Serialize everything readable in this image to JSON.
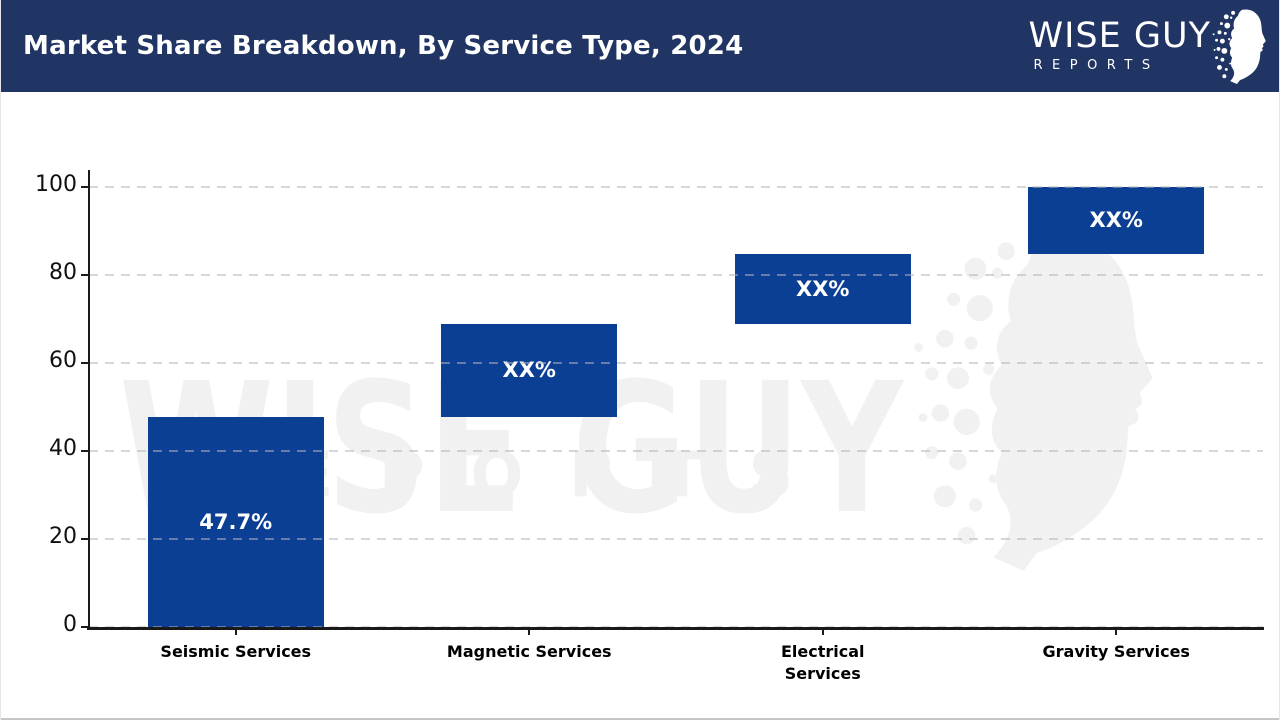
{
  "header": {
    "title": "Market Share Breakdown, By Service Type, 2024",
    "logo": {
      "line1": "WISE GUY",
      "line2": "REPORTS"
    }
  },
  "watermark": {
    "line1": "WISE GUY",
    "line2": "REPORTS"
  },
  "colors": {
    "header_bg": "#213564",
    "bar": "#0a3f94",
    "grid": "#b4b4b4",
    "axis": "#1a1a1a",
    "watermark": "#f1f1f1",
    "value_text": "#ffffff"
  },
  "chart_data": {
    "type": "bar",
    "variant": "waterfall",
    "title": "Market Share Breakdown, By Service Type, 2024",
    "xlabel": "",
    "ylabel": "",
    "categories": [
      "Seismic Services",
      "Magnetic Services",
      "Electrical\nServices",
      "Gravity Services"
    ],
    "bars": [
      {
        "category": "Seismic Services",
        "start": 0,
        "end": 47.7,
        "label": "47.7%"
      },
      {
        "category": "Magnetic Services",
        "start": 47.7,
        "end": 68.9,
        "label": "XX%"
      },
      {
        "category": "Electrical Services",
        "start": 68.9,
        "end": 84.8,
        "label": "XX%"
      },
      {
        "category": "Gravity Services",
        "start": 84.8,
        "end": 100,
        "label": "XX%"
      }
    ],
    "yticks": [
      0,
      20,
      40,
      60,
      80,
      100
    ],
    "ylim": [
      0,
      103.8
    ],
    "grid": "horizontal-dashed",
    "legend": "none"
  }
}
